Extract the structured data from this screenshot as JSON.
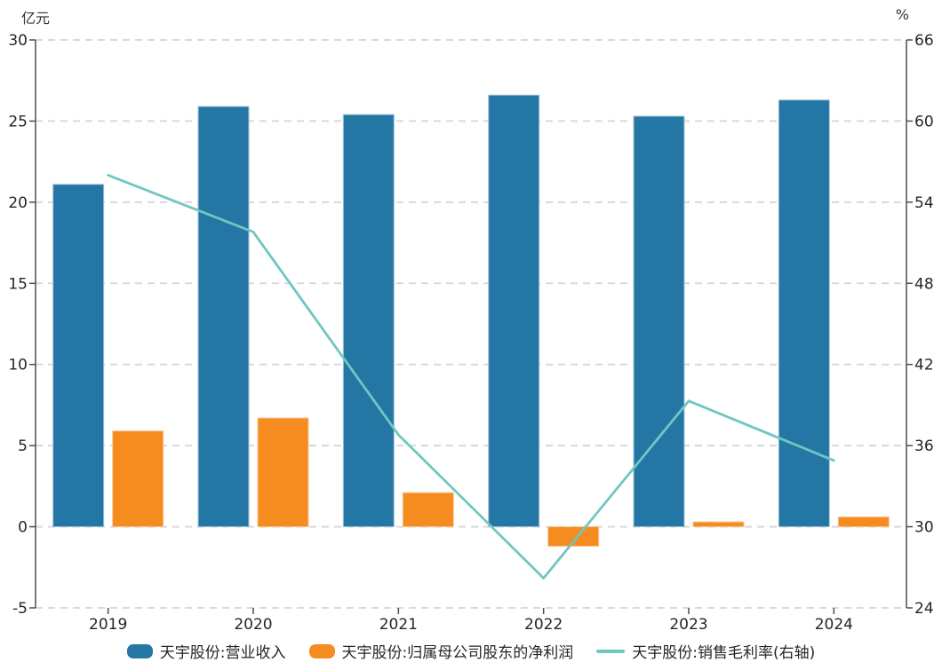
{
  "chart": {
    "left_axis": {
      "unit": "亿元",
      "ticks": [
        "30",
        "25",
        "20",
        "15",
        "10",
        "5",
        "0",
        "-5"
      ]
    },
    "right_axis": {
      "unit": "%",
      "ticks": [
        "66",
        "60",
        "54",
        "48",
        "42",
        "36",
        "30",
        "24"
      ]
    }
  },
  "legend": {
    "items": [
      {
        "label": "天宇股份:营业收入",
        "type": "bar",
        "color": "#2477a5"
      },
      {
        "label": "天宇股份:归属母公司股东的净利润",
        "type": "bar",
        "color": "#f68b1f"
      },
      {
        "label": "天宇股份:销售毛利率(右轴)",
        "type": "line",
        "color": "#6fc7c2"
      }
    ]
  },
  "chart_data": {
    "type": "bar+line combo, dual axis",
    "categories": [
      "2019",
      "2020",
      "2021",
      "2022",
      "2023",
      "2024"
    ],
    "series": [
      {
        "name": "天宇股份:营业收入",
        "type": "bar",
        "axis": "left",
        "color": "#2477a5",
        "edge_color": "#a3c4d8",
        "values": [
          21.1,
          25.9,
          25.4,
          26.6,
          25.3,
          26.3
        ]
      },
      {
        "name": "天宇股份:归属母公司股东的净利润",
        "type": "bar",
        "axis": "left",
        "color": "#f68b1f",
        "edge_color": "#fac78e",
        "values": [
          5.9,
          6.7,
          2.1,
          -1.2,
          0.3,
          0.6
        ]
      },
      {
        "name": "天宇股份:销售毛利率(右轴)",
        "type": "line",
        "axis": "right",
        "color": "#6fc7c2",
        "values": [
          56.0,
          51.8,
          36.8,
          26.2,
          39.3,
          34.9
        ]
      }
    ],
    "left_ylabel": "亿元",
    "right_ylabel": "%",
    "left_ylim": [
      -5,
      30
    ],
    "right_ylim": [
      24,
      66
    ],
    "grid": {
      "horizontal": true,
      "style": "dashed",
      "color": "#d9d9d9"
    },
    "axis_color": "#4d4d4d",
    "legend_position": "bottom"
  }
}
